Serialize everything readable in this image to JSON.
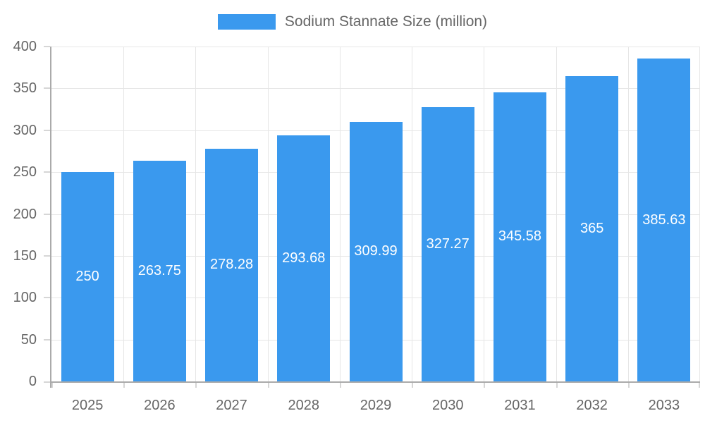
{
  "legend": {
    "position": "top",
    "items": [
      {
        "label": "Sodium Stannate Size (million)",
        "color": "#3A99EE"
      }
    ]
  },
  "chart_data": {
    "type": "bar",
    "title": "",
    "xlabel": "",
    "ylabel": "",
    "categories": [
      "2025",
      "2026",
      "2027",
      "2028",
      "2029",
      "2030",
      "2031",
      "2032",
      "2033"
    ],
    "series": [
      {
        "name": "Sodium Stannate Size (million)",
        "values": [
          250,
          263.75,
          278.28,
          293.68,
          309.99,
          327.27,
          345.58,
          365,
          385.63
        ]
      }
    ],
    "value_labels": [
      "250",
      "263.75",
      "278.28",
      "293.68",
      "309.99",
      "327.27",
      "345.58",
      "365",
      "385.63"
    ],
    "ylim": [
      0,
      400
    ],
    "yticks": [
      0,
      50,
      100,
      150,
      200,
      250,
      300,
      350,
      400
    ],
    "grid": true,
    "legend_position": "top",
    "bar_color": "#3A99EE",
    "value_label_color": "#ffffff",
    "axis_text_color": "#666666",
    "axis_line_color": "#aaaaaa",
    "gridline_color": "#e6e6e6"
  }
}
